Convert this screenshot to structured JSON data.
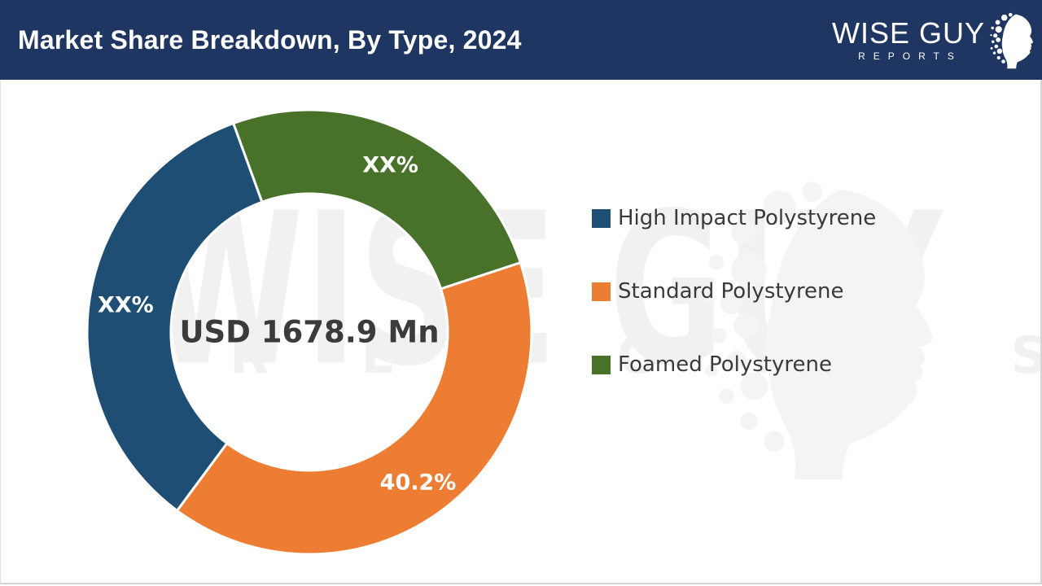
{
  "header": {
    "title": "Market Share Breakdown, By Type, 2024",
    "bg_color": "#1F3663",
    "logo": {
      "line1": "WISE GUY",
      "line2": "REPORTS"
    }
  },
  "chart_data": {
    "type": "donut",
    "title": "Market Share Breakdown, By Type, 2024",
    "center_label": "USD 1678.9 Mn",
    "legend_position": "right",
    "start_angle_deg": -20,
    "slices": [
      {
        "name": "Foamed Polystyrene",
        "display_label": "XX%",
        "arc_pct_est": 25.5,
        "color": "#48722A"
      },
      {
        "name": "Standard Polystyrene",
        "display_label": "40.2%",
        "arc_pct_est": 40.2,
        "color": "#ED7D33"
      },
      {
        "name": "High Impact Polystyrene",
        "display_label": "XX%",
        "arc_pct_est": 34.3,
        "color": "#1F4E75"
      }
    ]
  },
  "legend": {
    "items": [
      {
        "label": "High Impact Polystyrene",
        "color": "#1F4E75"
      },
      {
        "label": "Standard Polystyrene",
        "color": "#ED7D33"
      },
      {
        "label": "Foamed Polystyrene",
        "color": "#48722A"
      }
    ]
  },
  "watermark": {
    "line1": "WISE GUY",
    "line2": "R E P O R T S",
    "text_color": "#F1F1F1",
    "head_color": "#F4F4F4"
  }
}
